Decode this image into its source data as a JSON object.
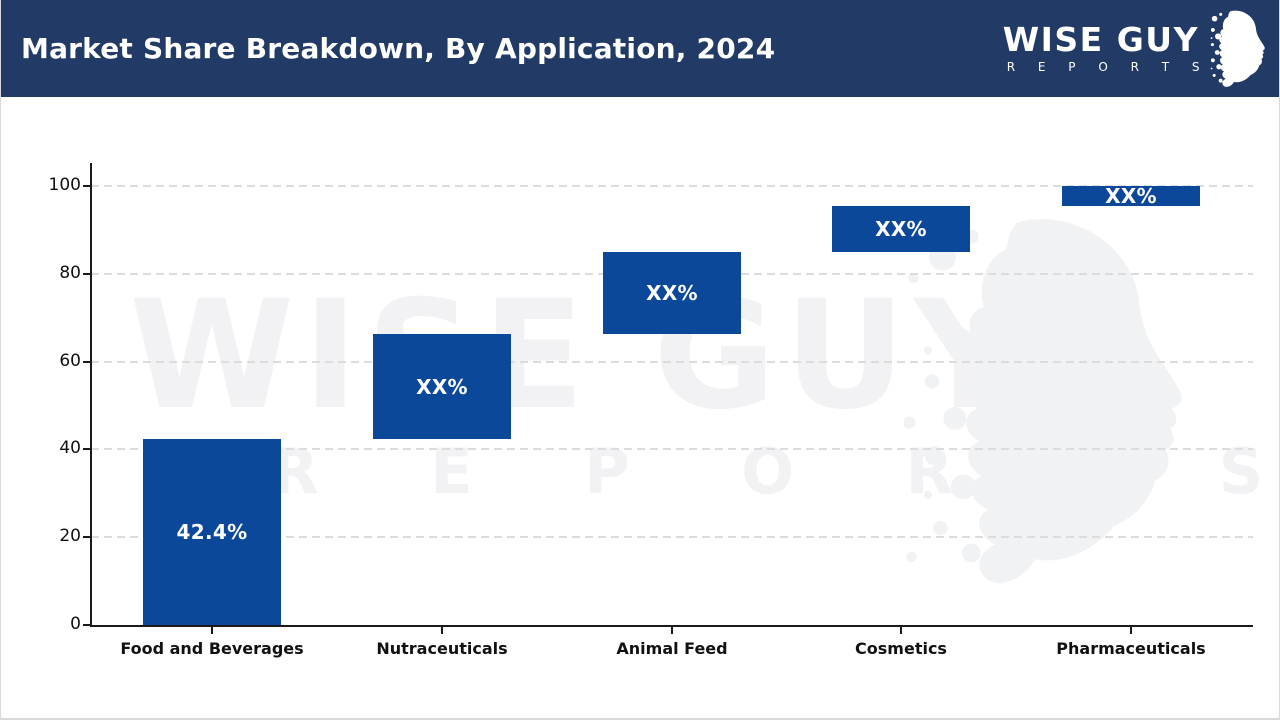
{
  "header": {
    "title": "Market Share Breakdown, By Application, 2024",
    "bg_color": "#223A66",
    "logo": {
      "line1": "WISE GUY",
      "line2": "R E P O R T S"
    }
  },
  "watermark": {
    "line1": "WISE GUY",
    "line2": "R E P O R T S"
  },
  "chart_data": {
    "type": "bar",
    "subtype": "waterfall",
    "title": "Market Share Breakdown, By Application, 2024",
    "categories": [
      "Food and Beverages",
      "Nutraceuticals",
      "Animal Feed",
      "Cosmetics",
      "Pharmaceuticals"
    ],
    "segments": [
      {
        "start": 0,
        "end": 42.4,
        "label": "42.4%"
      },
      {
        "start": 42.4,
        "end": 66.4,
        "label": "XX%"
      },
      {
        "start": 66.4,
        "end": 85.0,
        "label": "XX%"
      },
      {
        "start": 85.0,
        "end": 95.4,
        "label": "XX%"
      },
      {
        "start": 95.4,
        "end": 100,
        "label": "XX%"
      }
    ],
    "yticks": [
      0,
      20,
      40,
      60,
      80,
      100
    ],
    "ylim": [
      0,
      105
    ],
    "xlabel": "",
    "ylabel": "",
    "grid": true,
    "legend": "none",
    "bar_color": "#0C4899",
    "bar_label_color": "#FFFFFF",
    "axis_color": "#1a1a1a",
    "gridline_color": "#dcdcdc"
  }
}
